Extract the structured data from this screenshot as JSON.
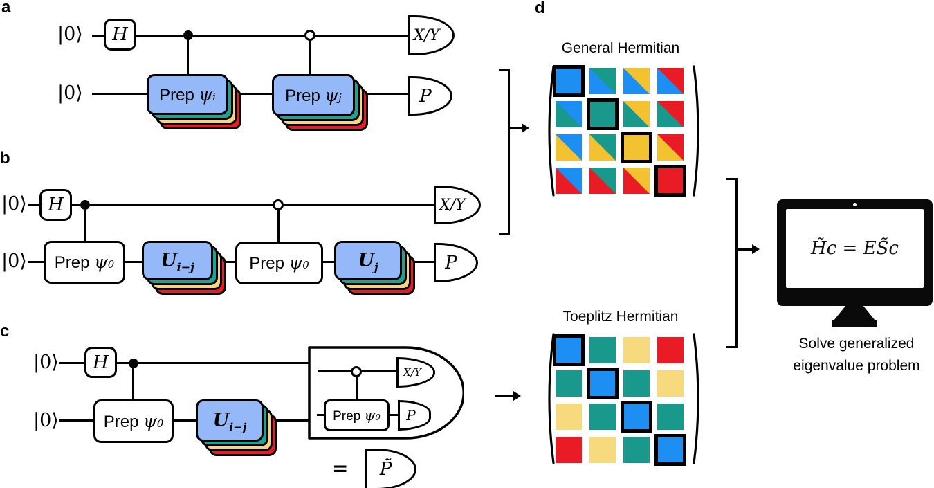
{
  "labels": {
    "panel_a": "a",
    "panel_b": "b",
    "panel_c": "c",
    "panel_d": "d",
    "ket_zero": "|0⟩",
    "hadamard": "H",
    "prep": "Prep ",
    "psi": "ψ",
    "sub_i": "i",
    "sub_j": "j",
    "sub_zero": "0",
    "sub_i_minus_j": "i−j",
    "unitary": "U",
    "meas_xy": "X/Y",
    "meas_p": "P",
    "meas_p_tilde": "P̃",
    "equals": "="
  },
  "matrices": {
    "palette": {
      "blue": "#1D8FF2",
      "teal": "#18998B",
      "gold": "#F2C230",
      "lightgold": "#F7DA7E",
      "red": "#E91C25"
    },
    "general": {
      "title": "General Hermitian",
      "grid": [
        [
          {
            "type": "solid",
            "color": "blue",
            "border": true
          },
          {
            "type": "split",
            "bl": "blue",
            "tr": "teal"
          },
          {
            "type": "split",
            "bl": "blue",
            "tr": "gold"
          },
          {
            "type": "split",
            "bl": "blue",
            "tr": "red"
          }
        ],
        [
          {
            "type": "split",
            "bl": "teal",
            "tr": "blue"
          },
          {
            "type": "solid",
            "color": "teal",
            "border": true
          },
          {
            "type": "split",
            "bl": "teal",
            "tr": "gold"
          },
          {
            "type": "split",
            "bl": "teal",
            "tr": "red"
          }
        ],
        [
          {
            "type": "split",
            "bl": "gold",
            "tr": "blue"
          },
          {
            "type": "split",
            "bl": "gold",
            "tr": "teal"
          },
          {
            "type": "solid",
            "color": "gold",
            "border": true
          },
          {
            "type": "split",
            "bl": "gold",
            "tr": "red"
          }
        ],
        [
          {
            "type": "split",
            "bl": "red",
            "tr": "blue"
          },
          {
            "type": "split",
            "bl": "red",
            "tr": "teal"
          },
          {
            "type": "split",
            "bl": "red",
            "tr": "gold"
          },
          {
            "type": "solid",
            "color": "red",
            "border": true
          }
        ]
      ]
    },
    "toeplitz": {
      "title": "Toeplitz Hermitian",
      "grid": [
        [
          {
            "type": "solid",
            "color": "blue",
            "border": true
          },
          {
            "type": "solid",
            "color": "teal"
          },
          {
            "type": "solid",
            "color": "lightgold"
          },
          {
            "type": "solid",
            "color": "red"
          }
        ],
        [
          {
            "type": "solid",
            "color": "teal"
          },
          {
            "type": "solid",
            "color": "blue",
            "border": true
          },
          {
            "type": "solid",
            "color": "teal"
          },
          {
            "type": "solid",
            "color": "lightgold"
          }
        ],
        [
          {
            "type": "solid",
            "color": "lightgold"
          },
          {
            "type": "solid",
            "color": "teal"
          },
          {
            "type": "solid",
            "color": "blue",
            "border": true
          },
          {
            "type": "solid",
            "color": "teal"
          }
        ],
        [
          {
            "type": "solid",
            "color": "red"
          },
          {
            "type": "solid",
            "color": "lightgold"
          },
          {
            "type": "solid",
            "color": "teal"
          },
          {
            "type": "solid",
            "color": "blue",
            "border": true
          }
        ]
      ]
    }
  },
  "stack_colors": {
    "top": "#94B8F8",
    "teal": "#23A090",
    "gold": "#F5D584",
    "red": "#EA1B23"
  },
  "computer": {
    "equation": "H̃c = ES̃c",
    "caption": [
      "Solve generalized",
      "eigenvalue problem"
    ]
  }
}
